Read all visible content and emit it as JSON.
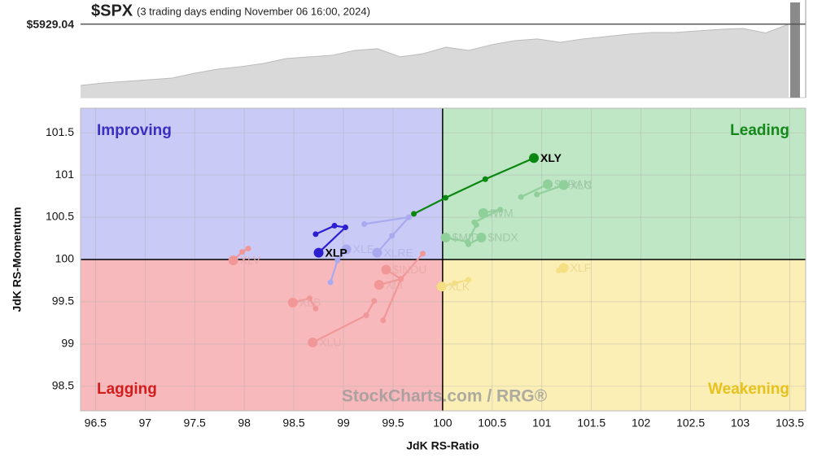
{
  "chart_data": [
    {
      "type": "area",
      "title": "$SPX",
      "subtitle": "(3 trading days ending November 06 16:00, 2024)",
      "last": {
        "value": 5929.04,
        "label": "$5929.04"
      },
      "values": [
        5446,
        5465,
        5478,
        5491,
        5504,
        5542,
        5574,
        5594,
        5619,
        5658,
        5671,
        5683,
        5722,
        5735,
        5671,
        5696,
        5747,
        5722,
        5767,
        5799,
        5812,
        5786,
        5812,
        5831,
        5850,
        5863,
        5863,
        5876,
        5888,
        5895,
        5860,
        5929.04
      ],
      "ylim": [
        5350,
        6100
      ],
      "color": "#d9d9d9"
    },
    {
      "type": "rrg",
      "xlabel": "JdK RS-Ratio",
      "ylabel": "JdK RS-Momentum",
      "watermark": "StockCharts.com / RRG®",
      "xlim": [
        96.35,
        103.66
      ],
      "ylim": [
        98.21,
        101.79
      ],
      "xticks": [
        96.5,
        97,
        97.5,
        98,
        98.5,
        99,
        99.5,
        100,
        100.5,
        101,
        101.5,
        102,
        102.5,
        103,
        103.5
      ],
      "yticks": [
        98.5,
        99,
        99.5,
        100,
        100.5,
        101,
        101.5
      ],
      "grid": true,
      "center": {
        "x": 100,
        "y": 100
      },
      "quadrants": [
        {
          "name": "Improving",
          "corner": "top-left",
          "fill": "#cacaf6",
          "color": "#3a2fc0"
        },
        {
          "name": "Leading",
          "corner": "top-right",
          "fill": "#bfe6c5",
          "color": "#14891a"
        },
        {
          "name": "Lagging",
          "corner": "bottom-left",
          "fill": "#f7b9bc",
          "color": "#d41c1c"
        },
        {
          "name": "Weakening",
          "corner": "bottom-right",
          "fill": "#fbefb6",
          "color": "#e8c21c"
        }
      ],
      "series": [
        {
          "name": "XLV",
          "color": "#f19797",
          "label_color": "#e9aaaa",
          "x": [
            98.04,
            97.98,
            97.89
          ],
          "values": [
            100.13,
            100.09,
            99.99
          ]
        },
        {
          "name": "XLB",
          "color": "#f19797",
          "label_color": "#e9aaaa",
          "x": [
            98.72,
            98.66,
            98.49
          ],
          "values": [
            99.42,
            99.54,
            99.49
          ]
        },
        {
          "name": "XLU",
          "color": "#f19797",
          "label_color": "#e9aaaa",
          "x": [
            99.31,
            99.23,
            98.69
          ],
          "values": [
            99.51,
            99.34,
            99.02
          ]
        },
        {
          "name": "XLI",
          "color": "#f19797",
          "label_color": "#e9aaaa",
          "x": [
            99.4,
            99.58,
            99.36
          ],
          "values": [
            99.28,
            99.77,
            99.7
          ]
        },
        {
          "name": "$INDU",
          "color": "#f19797",
          "label_color": "#e9aaaa",
          "x": [
            99.8,
            99.58,
            99.43
          ],
          "values": [
            100.07,
            99.77,
            99.88
          ]
        },
        {
          "name": "XLE",
          "color": "#a9a9f0",
          "label_color": "#b6b6e8",
          "x": [
            98.87,
            98.94,
            99.03
          ],
          "values": [
            99.73,
            99.99,
            100.12
          ]
        },
        {
          "name": "XLRE",
          "color": "#a9a9f0",
          "label_color": "#b6b6e8",
          "x": [
            99.21,
            99.66,
            99.49,
            99.34
          ],
          "values": [
            100.42,
            100.5,
            100.28,
            100.08
          ]
        },
        {
          "name": "XLK",
          "color": "#f4df82",
          "label_color": "#ecd98f",
          "x": [
            100.26,
            100.12,
            99.99
          ],
          "values": [
            99.76,
            99.72,
            99.68
          ]
        },
        {
          "name": "XLF",
          "color": "#f4df82",
          "label_color": "#ecd98f",
          "x": [
            101.17,
            101.22
          ],
          "values": [
            99.87,
            99.9
          ]
        },
        {
          "name": "$MID",
          "color": "#8fcf9a",
          "label_color": "#9fcaa6",
          "x": [
            100.34,
            100.25,
            100.03
          ],
          "values": [
            100.41,
            100.21,
            100.26
          ]
        },
        {
          "name": "$NDX",
          "color": "#8fcf9a",
          "label_color": "#9fcaa6",
          "x": [
            100.26,
            100.39
          ],
          "values": [
            100.18,
            100.26
          ]
        },
        {
          "name": "IWM",
          "color": "#8fcf9a",
          "label_color": "#9fcaa6",
          "x": [
            100.32,
            100.58,
            100.41
          ],
          "values": [
            100.44,
            100.59,
            100.55
          ]
        },
        {
          "name": "$TRAN",
          "color": "#8fcf9a",
          "label_color": "#9fcaa6",
          "x": [
            100.79,
            101.06
          ],
          "values": [
            100.74,
            100.89
          ]
        },
        {
          "name": "XLC",
          "color": "#8fcf9a",
          "label_color": "#9fcaa6",
          "x": [
            100.95,
            101.22
          ],
          "values": [
            100.77,
            100.88
          ]
        },
        {
          "name": "XLP",
          "color": "#2b1fd0",
          "label_color": "#000000",
          "x": [
            98.72,
            98.91,
            99.02,
            98.75
          ],
          "values": [
            100.3,
            100.4,
            100.38,
            100.08
          ]
        },
        {
          "name": "XLY",
          "color": "#0a870f",
          "label_color": "#000000",
          "x": [
            99.71,
            100.03,
            100.43,
            100.92
          ],
          "values": [
            100.54,
            100.73,
            100.95,
            101.2
          ]
        }
      ]
    }
  ]
}
